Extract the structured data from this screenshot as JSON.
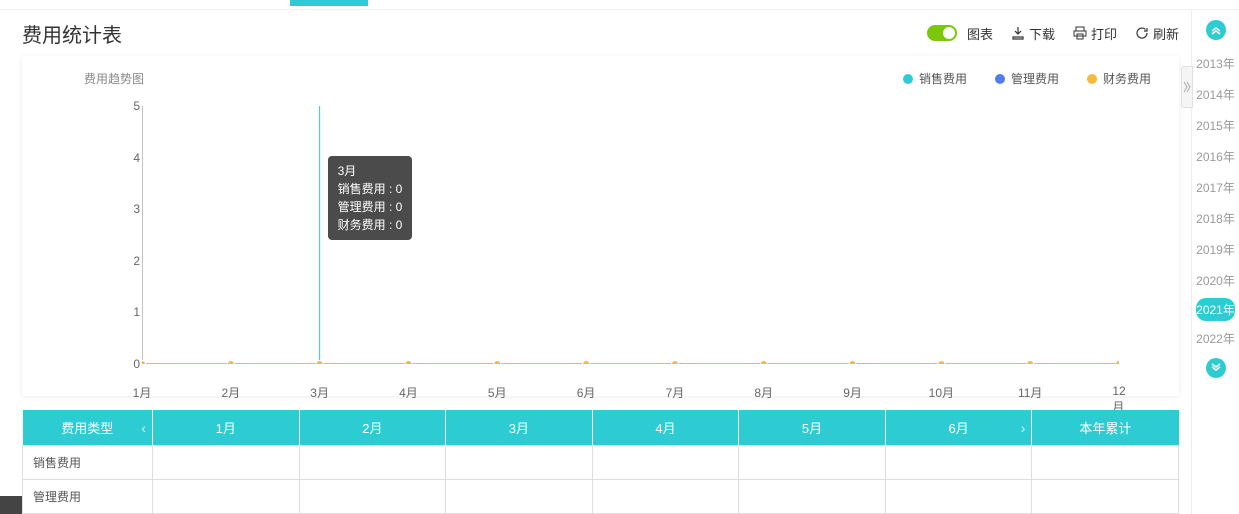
{
  "header": {
    "title": "费用统计表",
    "toggle_label": "图表",
    "download_label": "下载",
    "print_label": "打印",
    "refresh_label": "刷新"
  },
  "chart": {
    "subtitle": "费用趋势图",
    "type": "line",
    "legend": [
      {
        "label": "销售费用",
        "color": "#2dccd3"
      },
      {
        "label": "管理费用",
        "color": "#4f7de9"
      },
      {
        "label": "财务费用",
        "color": "#f5b93e"
      }
    ],
    "x_labels": [
      "1月",
      "2月",
      "3月",
      "4月",
      "5月",
      "6月",
      "7月",
      "8月",
      "9月",
      "10月",
      "11月",
      "12月"
    ],
    "series": [
      {
        "name": "销售费用",
        "color": "#2dccd3",
        "values": [
          0,
          0,
          0,
          0,
          0,
          0,
          0,
          0,
          0,
          0,
          0,
          0
        ]
      },
      {
        "name": "管理费用",
        "color": "#4f7de9",
        "values": [
          0,
          0,
          0,
          0,
          0,
          0,
          0,
          0,
          0,
          0,
          0,
          0
        ]
      },
      {
        "name": "财务费用",
        "color": "#f5b93e",
        "values": [
          0,
          0,
          0,
          0,
          0,
          0,
          0,
          0,
          0,
          0,
          0,
          0
        ]
      }
    ],
    "ylim": [
      0,
      5
    ],
    "ytick_step": 1,
    "axis_color": "#888888",
    "marker_index": 2,
    "marker_line_color": "#2dccd3",
    "point_radius": 3.5,
    "background_color": "#ffffff",
    "tooltip": {
      "title": "3月",
      "rows": [
        {
          "label": "销售费用",
          "value": "0"
        },
        {
          "label": "管理费用",
          "value": "0"
        },
        {
          "label": "财务费用",
          "value": "0"
        }
      ]
    }
  },
  "table": {
    "type_header": "费用类型",
    "month_headers": [
      "1月",
      "2月",
      "3月",
      "4月",
      "5月",
      "6月"
    ],
    "ytd_header": "本年累计",
    "rows": [
      {
        "type": "销售费用"
      },
      {
        "type": "管理费用"
      }
    ],
    "header_bg": "#2dccd3"
  },
  "years": {
    "list": [
      "2013年",
      "2014年",
      "2015年",
      "2016年",
      "2017年",
      "2018年",
      "2019年",
      "2020年",
      "2021年",
      "2022年"
    ],
    "active": "2021年"
  }
}
